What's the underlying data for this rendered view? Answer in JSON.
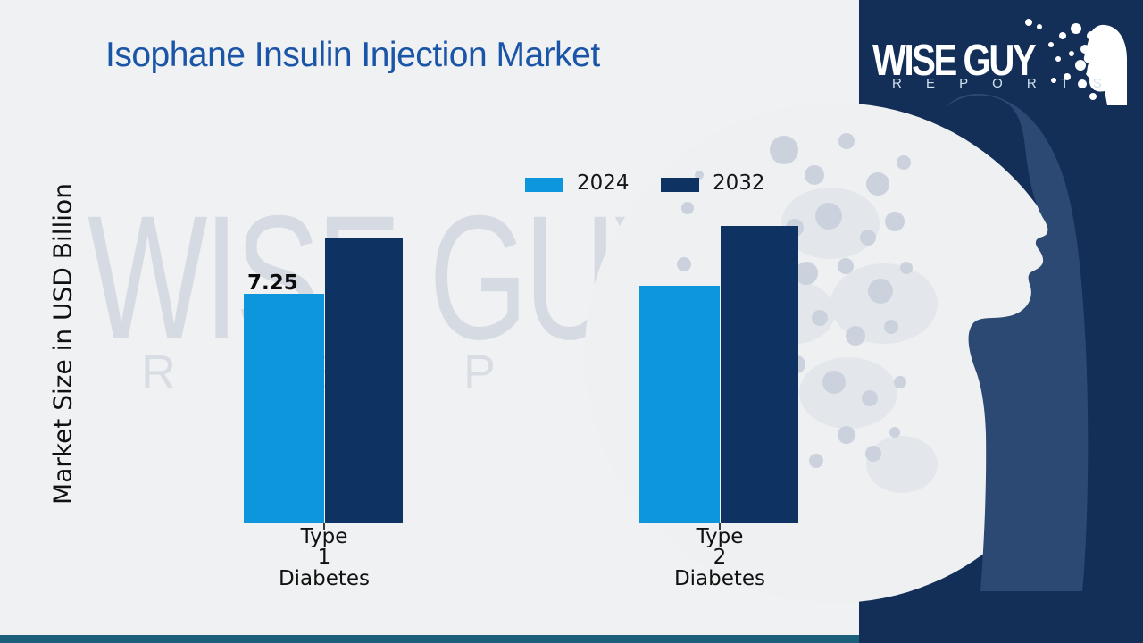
{
  "header": {
    "title": "Isophane Insulin Injection Market"
  },
  "brand": {
    "name": "WISE GUY",
    "tagline": "R E P O R T S"
  },
  "watermark": {
    "line1": "WISE GUY",
    "line2": "R E P O R T S"
  },
  "chart_data": {
    "type": "bar",
    "categories": [
      "Type 1 Diabetes",
      "Type 2 Diabetes"
    ],
    "series": [
      {
        "name": "2024",
        "color": "#0e96dc",
        "values": [
          7.25,
          7.5
        ]
      },
      {
        "name": "2032",
        "color": "#0e3261",
        "values": [
          9.0,
          9.4
        ]
      }
    ],
    "data_labels": [
      [
        "7.25",
        ""
      ],
      [
        "",
        ""
      ]
    ],
    "title": "Isophane Insulin Injection Market",
    "xlabel": "",
    "ylabel": "Market Size in USD Billion",
    "ylim": [
      0,
      10.5
    ],
    "grid": false,
    "legend_position": "top-right"
  },
  "colors": {
    "background": "#f0f1f2",
    "title_blue": "#1b55a8",
    "series_2024": "#0e96dc",
    "series_2032": "#0e3261",
    "panel_navy": "#132f58",
    "face_navy": "#2b4973",
    "light_circle": "#eef0f2",
    "watermark_gray": "#d6dbe3",
    "dot_gray": "#cbd2dd",
    "teal_strip": "#1b5f7b"
  }
}
